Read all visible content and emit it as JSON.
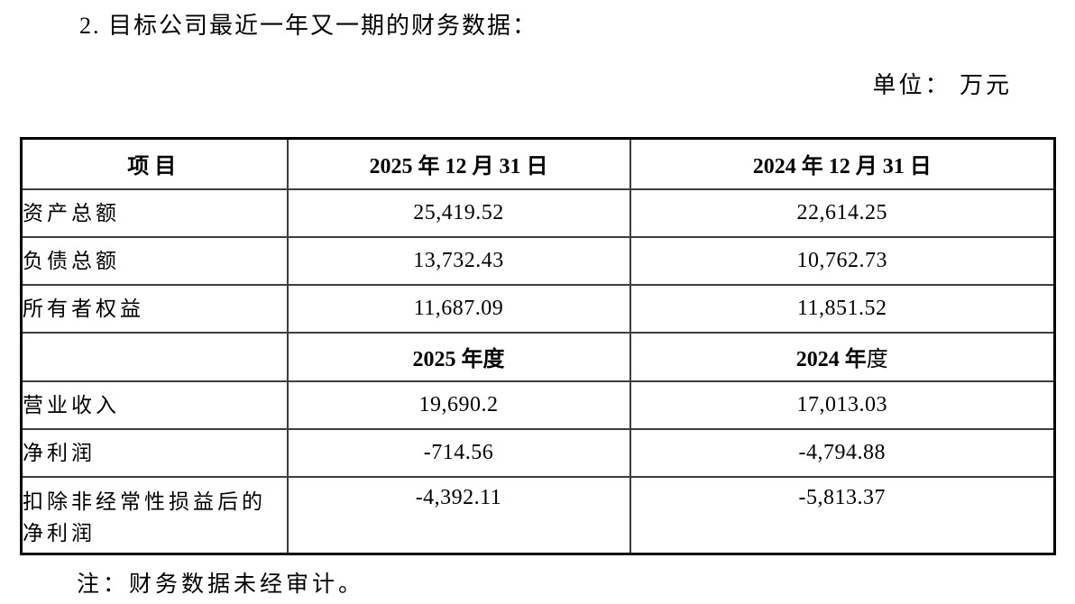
{
  "page": {
    "title": "2. 目标公司最近一年又一期的财务数据：",
    "unit_label": "单位： 万元",
    "note": "注：财务数据未经审计。"
  },
  "table": {
    "header": {
      "col1": "项目",
      "col2": "2025 年 12 月 31 日",
      "col3": "2024 年 12 月 31 日"
    },
    "balance_rows": [
      {
        "label": "资产总额",
        "v2025": "25,419.52",
        "v2024": "22,614.25"
      },
      {
        "label": "负债总额",
        "v2025": "13,732.43",
        "v2024": "10,762.73"
      },
      {
        "label": "所有者权益",
        "v2025": "11,687.09",
        "v2024": "11,851.52"
      }
    ],
    "period_header": {
      "col2": "2025 年度",
      "col3_bold": "2024 年",
      "col3_regular": "度"
    },
    "income_rows": [
      {
        "label": "营业收入",
        "v2025": "19,690.2",
        "v2024": "17,013.03"
      },
      {
        "label": "净利润",
        "v2025": "-714.56",
        "v2024": "-4,794.88"
      },
      {
        "label": "扣除非经常性损益后的净利润",
        "v2025": "-4,392.11",
        "v2024": "-5,813.37"
      }
    ]
  }
}
